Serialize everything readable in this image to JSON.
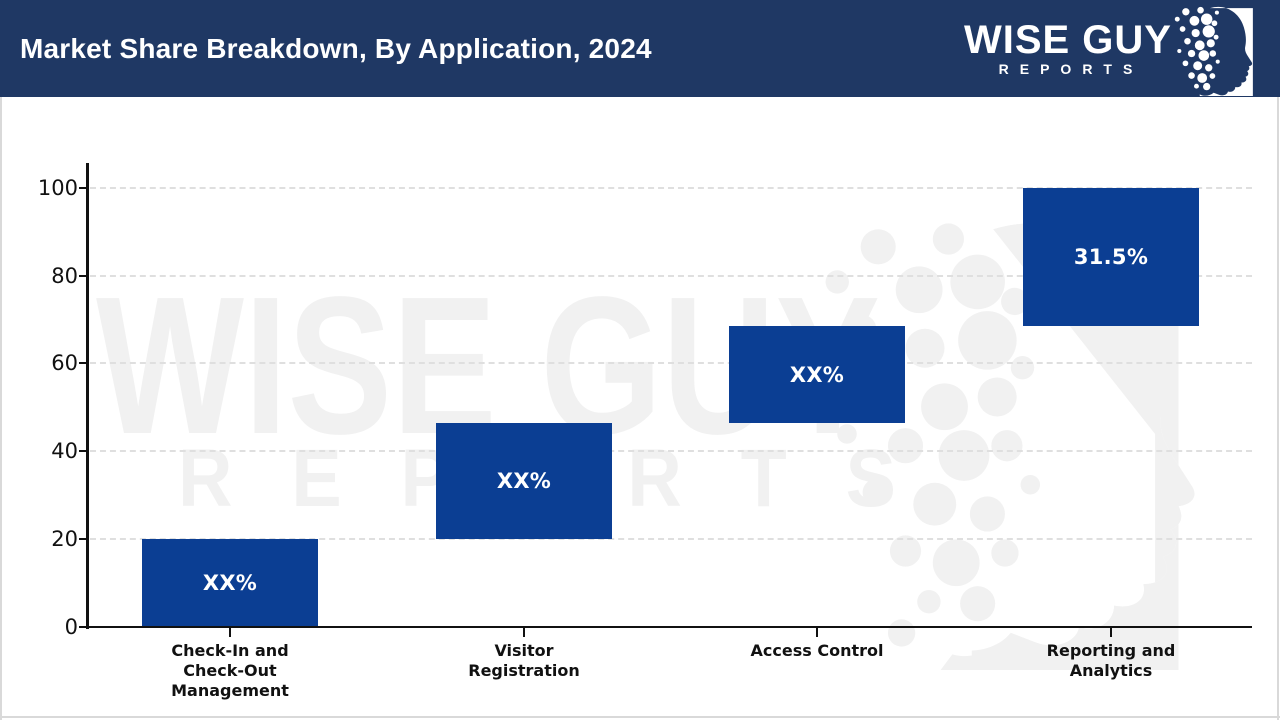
{
  "header": {
    "title": "Market Share Breakdown, By Application, 2024",
    "logo": {
      "line1": "WISE GUY",
      "line2": "REPORTS",
      "face_icon": "dotted-face-profile-icon"
    }
  },
  "watermark": {
    "line1": "WISE GUY",
    "line2": "REPORTS",
    "face_icon": "dotted-face-profile-icon"
  },
  "colors": {
    "header_bg": "#1f3864",
    "bar": "#0b3e93",
    "grid": "#dfdfdf",
    "axis": "#111111",
    "watermark": "#f1f1f1",
    "frame": "#d9d9d9",
    "bar_label": "#ffffff"
  },
  "chart_data": {
    "type": "bar",
    "subtype": "floating-waterfall",
    "title": "Market Share Breakdown, By Application, 2024",
    "categories": [
      "Check-In and\nCheck-Out\nManagement",
      "Visitor\nRegistration",
      "Access Control",
      "Reporting and\nAnalytics"
    ],
    "segments": [
      {
        "category": "Check-In and Check-Out Management",
        "start": 0,
        "end": 20,
        "label": "XX%"
      },
      {
        "category": "Visitor Registration",
        "start": 20,
        "end": 46.3,
        "label": "XX%"
      },
      {
        "category": "Access Control",
        "start": 46.3,
        "end": 68.5,
        "label": "XX%"
      },
      {
        "category": "Reporting and Analytics",
        "start": 68.5,
        "end": 100,
        "label": "31.5%"
      }
    ],
    "ylim": [
      0,
      100
    ],
    "yticks": [
      0,
      20,
      40,
      60,
      80,
      100
    ],
    "xlabel": "",
    "ylabel": "",
    "grid": "dashed-horizontal",
    "legend": "none"
  }
}
